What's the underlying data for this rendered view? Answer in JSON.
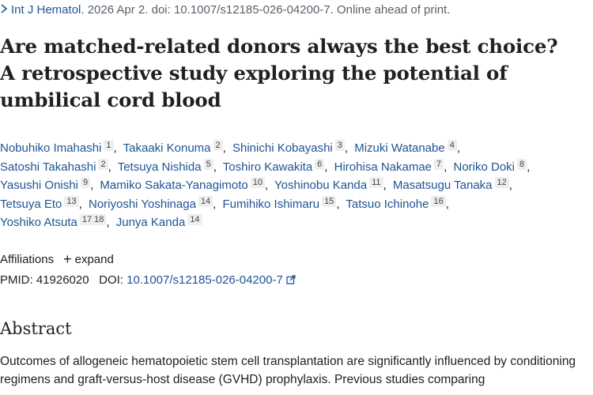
{
  "citation": {
    "icon": "chevron-right-icon",
    "journal": "Int J Hematol.",
    "details": " 2026 Apr 2. doi: 10.1007/s12185-026-04200-7. Online ahead of print."
  },
  "title_lines": [
    "Are matched-related donors always the best choice?",
    "A retrospective study exploring the potential of",
    "umbilical cord blood"
  ],
  "authors": [
    {
      "name": "Nobuhiko Imahashi",
      "aff": "1"
    },
    {
      "name": "Takaaki Konuma",
      "aff": "2"
    },
    {
      "name": "Shinichi Kobayashi",
      "aff": "3"
    },
    {
      "name": "Mizuki Watanabe",
      "aff": "4"
    },
    {
      "name": "Satoshi Takahashi",
      "aff": "2"
    },
    {
      "name": "Tetsuya Nishida",
      "aff": "5"
    },
    {
      "name": "Toshiro Kawakita",
      "aff": "6"
    },
    {
      "name": "Hirohisa Nakamae",
      "aff": "7"
    },
    {
      "name": "Noriko Doki",
      "aff": "8"
    },
    {
      "name": "Yasushi Onishi",
      "aff": "9"
    },
    {
      "name": "Mamiko Sakata-Yanagimoto",
      "aff": "10"
    },
    {
      "name": "Yoshinobu Kanda",
      "aff": "11"
    },
    {
      "name": "Masatsugu Tanaka",
      "aff": "12"
    },
    {
      "name": "Tetsuya Eto",
      "aff": "13"
    },
    {
      "name": "Noriyoshi Yoshinaga",
      "aff": "14"
    },
    {
      "name": "Fumihiko Ishimaru",
      "aff": "15"
    },
    {
      "name": "Tatsuo Ichinohe",
      "aff": "16"
    },
    {
      "name": "Yoshiko Atsuta",
      "aff": "17 18"
    },
    {
      "name": "Junya Kanda",
      "aff": "14"
    }
  ],
  "affiliations": {
    "label": "Affiliations",
    "expand_label": "expand",
    "expand_icon": "plus-icon"
  },
  "ids": {
    "pmid_label": "PMID:",
    "pmid": "41926020",
    "doi_label": "DOI:",
    "doi": "10.1007/s12185-026-04200-7",
    "doi_icon": "external-link-icon"
  },
  "abstract": {
    "heading": "Abstract",
    "text": "Outcomes of allogeneic hematopoietic stem cell transplantation are significantly influenced by conditioning regimens and graft-versus-host disease (GVHD) prophylaxis. Previous studies comparing"
  },
  "colors": {
    "link": "#205493",
    "text": "#212121",
    "muted": "#5b616b",
    "badge_bg": "#eeeeee"
  }
}
